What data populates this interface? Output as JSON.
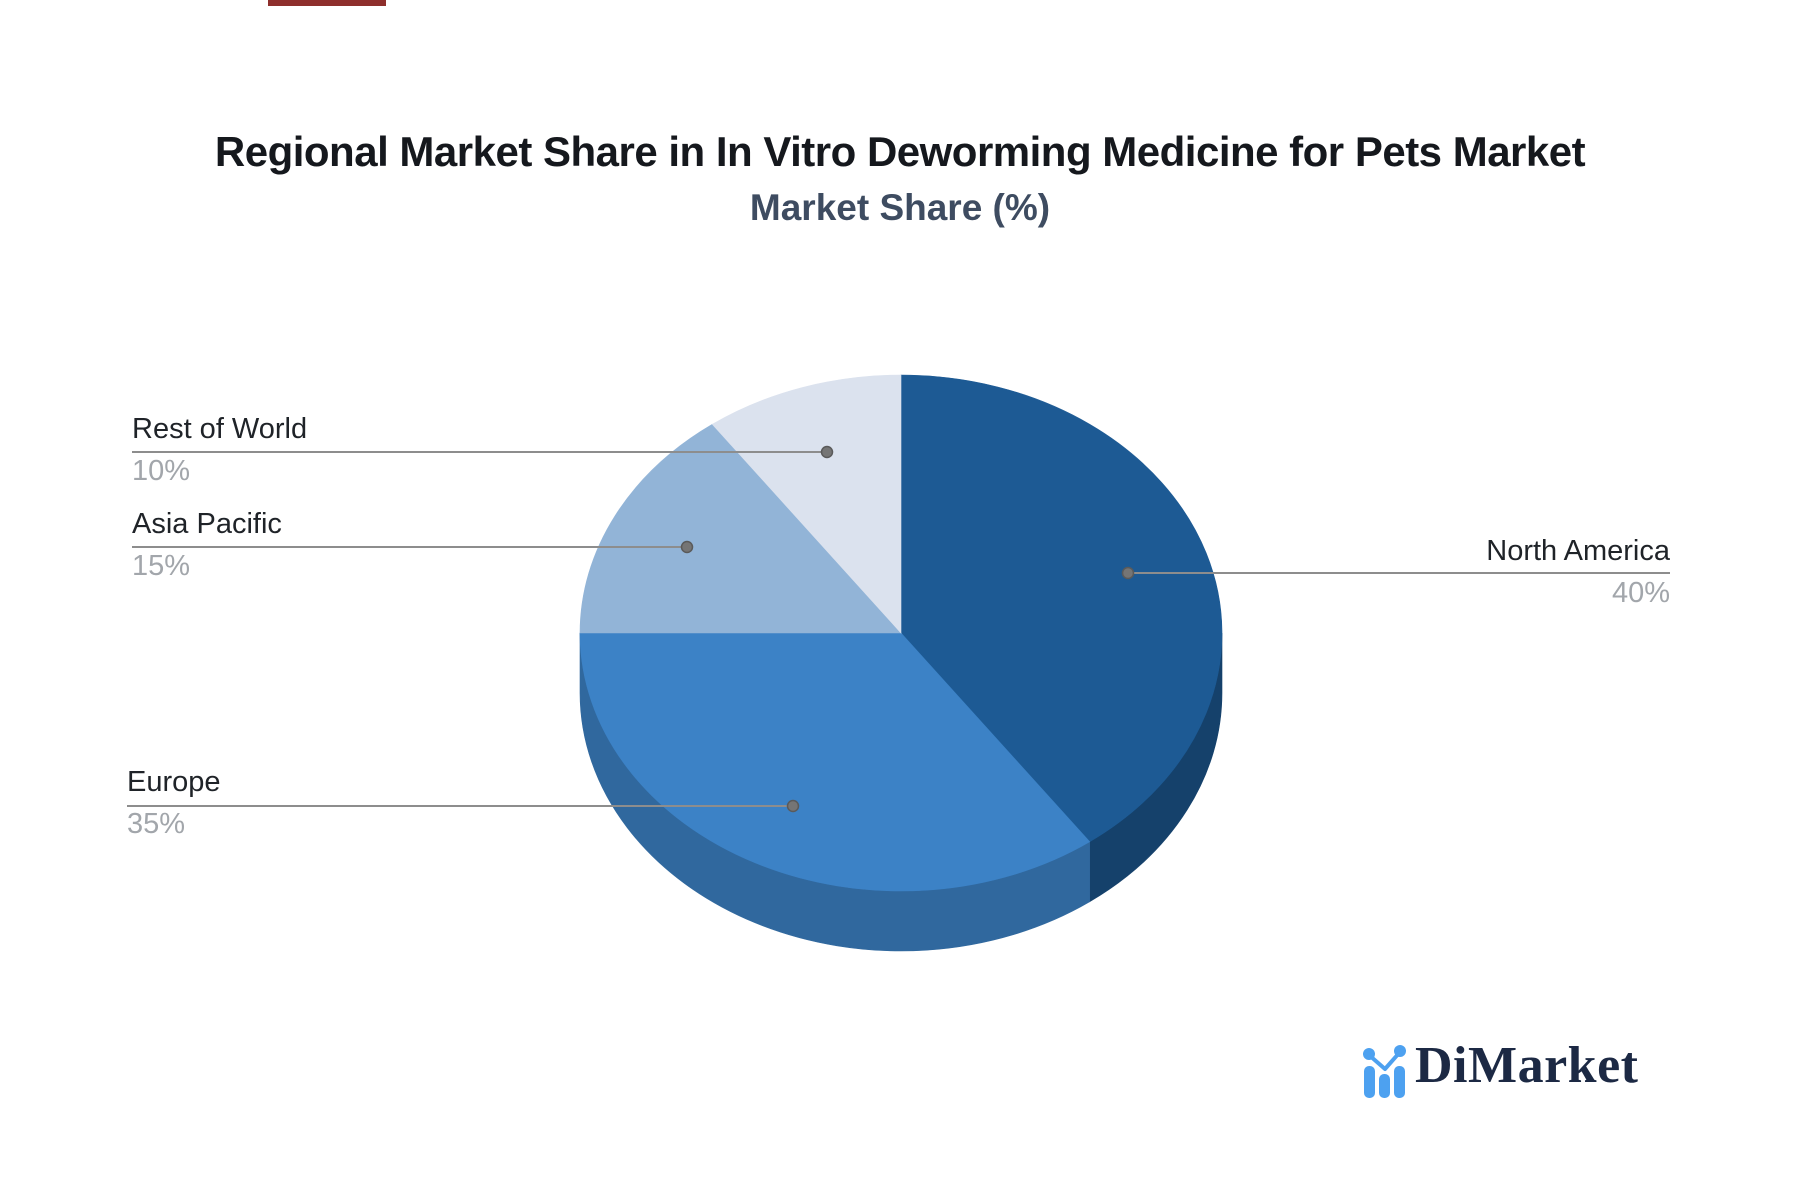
{
  "page": {
    "title": "Regional Market Share in In Vitro Deworming Medicine for Pets Market",
    "subtitle": "Market Share (%)"
  },
  "logo": {
    "text": "DiMarket",
    "icon": "bar-chart-icon",
    "accent_color": "#4da1f0",
    "text_color": "#1c2944"
  },
  "chart_data": {
    "type": "pie",
    "style": "3d",
    "title": "Regional Market Share in In Vitro Deworming Medicine for Pets Market",
    "subtitle": "Market Share (%)",
    "unit": "%",
    "direction": "clockwise",
    "start_angle_deg": 0,
    "categories": [
      "North America",
      "Europe",
      "Asia Pacific",
      "Rest of World"
    ],
    "values": [
      40,
      35,
      15,
      10
    ],
    "value_labels": [
      "40%",
      "35%",
      "15%",
      "10%"
    ],
    "colors": [
      "#1d5a94",
      "#3c82c6",
      "#92b4d7",
      "#dbe2ee"
    ],
    "legend": "connector-callouts",
    "connector_color": "#8d8d8d"
  }
}
